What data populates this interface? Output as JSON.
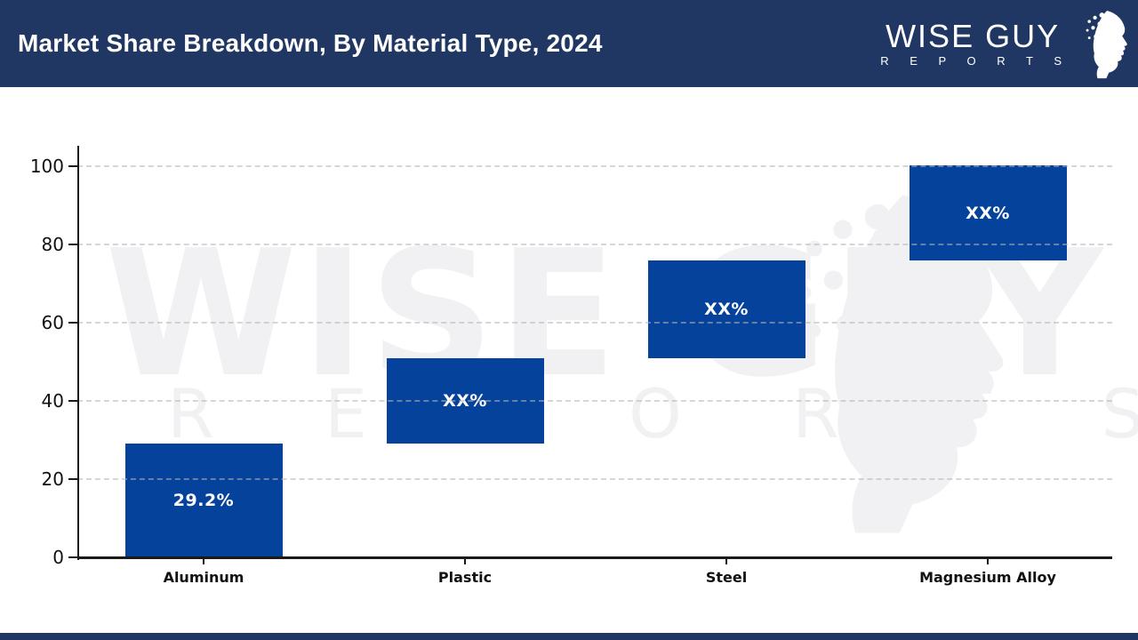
{
  "header": {
    "title": "Market Share Breakdown, By Material Type, 2024",
    "logo": {
      "line1": "WISE GUY",
      "line2": "R E P O R T S"
    }
  },
  "watermark": {
    "line1": "WISE GUY",
    "line2": "R E P O R T S"
  },
  "chart_data": {
    "type": "bar",
    "subtype": "waterfall",
    "title": "Market Share Breakdown, By Material Type, 2024",
    "categories": [
      "Aluminum",
      "Plastic",
      "Steel",
      "Magnesium Alloy"
    ],
    "segments": [
      {
        "category": "Aluminum",
        "start": 0,
        "end": 29.2,
        "label": "29.2%"
      },
      {
        "category": "Plastic",
        "start": 29.2,
        "end": 51.0,
        "label": "XX%"
      },
      {
        "category": "Steel",
        "start": 51.0,
        "end": 75.8,
        "label": "XX%"
      },
      {
        "category": "Magnesium Alloy",
        "start": 75.8,
        "end": 100.3,
        "label": "XX%"
      }
    ],
    "xlabel": "",
    "ylabel": "",
    "ylim": [
      0,
      105
    ],
    "yticks": [
      0,
      20,
      40,
      60,
      80,
      100
    ],
    "grid": "horizontal-dashed",
    "legend": "none",
    "bar_color": "#05429b",
    "bar_label_color": "#ffffff"
  },
  "colors": {
    "header_bg": "#203763",
    "bar_blue": "#05429b",
    "grid_dash": "#d9d9d9",
    "axis_black": "#1a1a1a",
    "watermark_gray": "#f1f1f4"
  }
}
